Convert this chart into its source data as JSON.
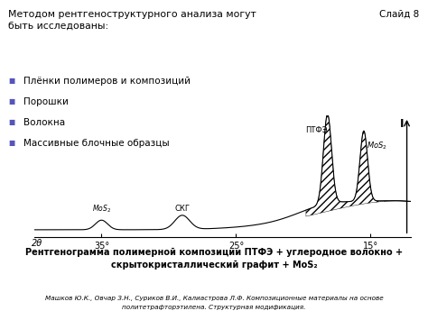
{
  "title_text": "Методом рентгеноструктурного анализа могут\nбыть исследованы:",
  "slide_label": "Слайд 8",
  "bullets": [
    "Плёнки полимеров и композиций",
    "Порошки",
    "Волокна",
    "Массивные блочные образцы"
  ],
  "caption_line1": "Рентгенограмма полимерной композиции ПТФЭ + углеродное волокно +",
  "caption_line2": "скрытокристаллический графит + MoS₂",
  "footnote_line1": "Машков Ю.К., Овчар З.Н., Суриков В.И., Калиастрова Л.Ф. Композиционные материалы на основе",
  "footnote_line2": "политетрафторэтилена. Структурная модификация.",
  "xlabel": "2θ",
  "xtick_labels": [
    "35°",
    "25°",
    "15°"
  ],
  "peak_labels": [
    "MoS₂",
    "СКГ",
    "ПТФЭ",
    "MoS₂"
  ],
  "ylabel": "I",
  "bg_color": "#ffffff",
  "text_color": "#000000",
  "bullet_color": "#5555bb"
}
